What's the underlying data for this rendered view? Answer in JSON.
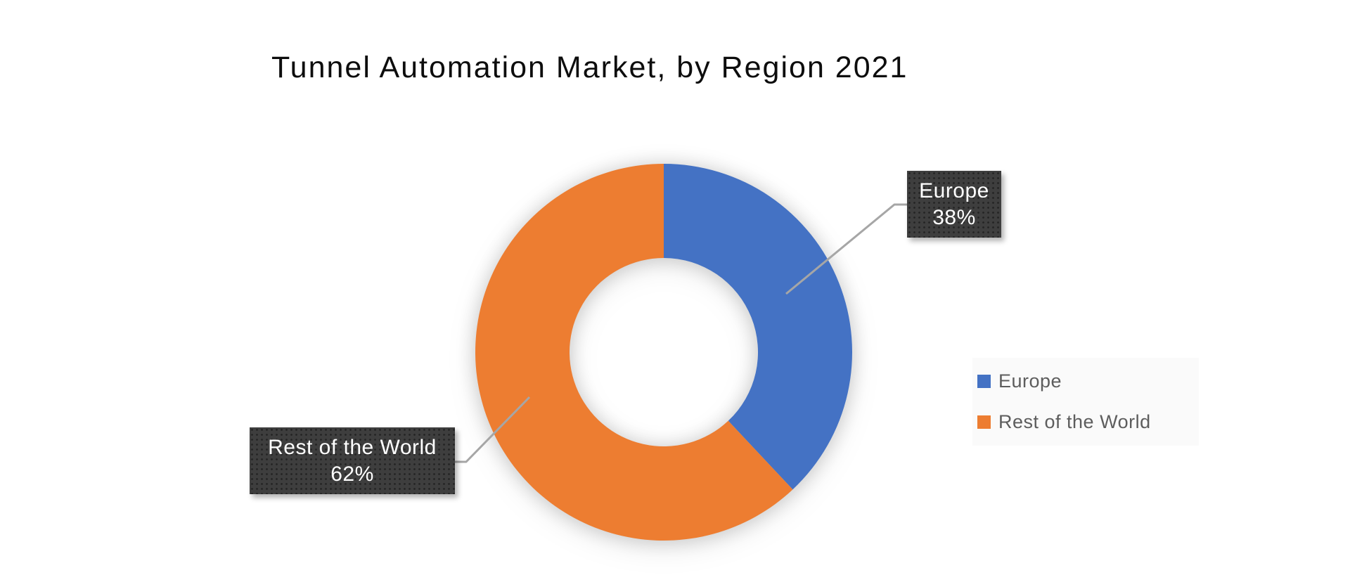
{
  "title": "Tunnel Automation Market, by Region 2021",
  "chart_data": {
    "type": "pie",
    "subtype": "donut",
    "title": "Tunnel Automation Market, by Region 2021",
    "categories": [
      "Europe",
      "Rest of the World"
    ],
    "values": [
      38,
      62
    ],
    "unit": "%",
    "value_labels": [
      "38%",
      "62%"
    ],
    "colors": [
      "#4472C4",
      "#ED7D31"
    ],
    "start_angle_deg": 0,
    "direction": "clockwise",
    "inner_radius_ratio": 0.5,
    "legend_position": "right",
    "data_label_style": "callout-boxes-with-leader-lines"
  },
  "callouts": [
    {
      "name": "Europe",
      "value_text": "38%"
    },
    {
      "name": "Rest of the World",
      "value_text": "62%"
    }
  ],
  "legend": {
    "items": [
      {
        "label": "Europe",
        "color": "#4472C4"
      },
      {
        "label": "Rest of the World",
        "color": "#ED7D31"
      }
    ]
  },
  "colors": {
    "background": "#ffffff",
    "title_text": "#0d0d0d",
    "callout_background": "#3e3e3e",
    "callout_text": "#ffffff",
    "leader_line": "#a6a6a6",
    "legend_background": "#fafafa",
    "legend_text": "#5d5d5d"
  }
}
